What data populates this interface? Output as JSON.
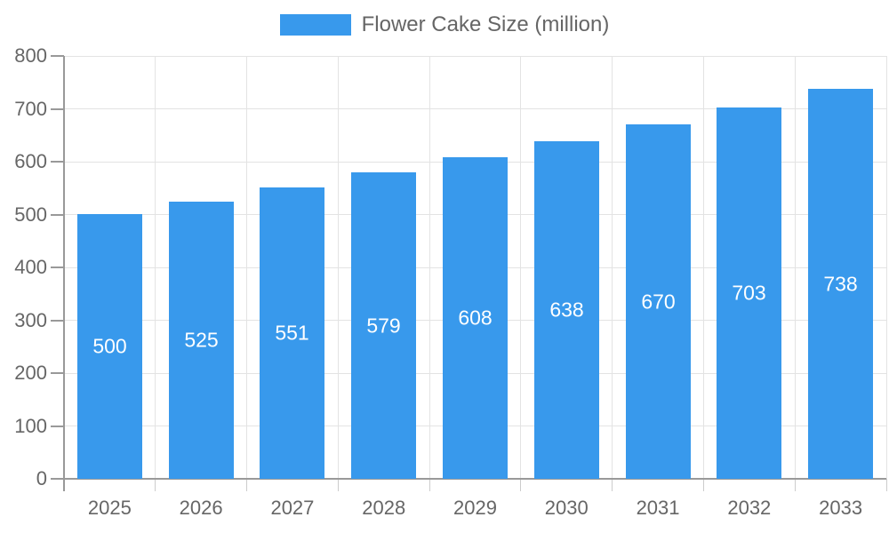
{
  "chart_data": {
    "type": "bar",
    "title": "Flower Cake Size (million)",
    "categories": [
      "2025",
      "2026",
      "2027",
      "2028",
      "2029",
      "2030",
      "2031",
      "2032",
      "2033"
    ],
    "values": [
      500,
      525,
      551,
      579,
      608,
      638,
      670,
      703,
      738
    ],
    "xlabel": "",
    "ylabel": "",
    "ylim": [
      0,
      800
    ],
    "ytick_step": 100,
    "grid": true,
    "legend": {
      "label": "Flower Cake Size (million)",
      "position": "top"
    },
    "colors": {
      "bar": "#3899EC",
      "value_label": "#FFFFFF",
      "axis_text": "#666666",
      "grid_line": "#E3E3E3",
      "x_tick_line": "#CCCCCC",
      "axis_line": "#999999",
      "background": "#FFFFFF"
    }
  }
}
